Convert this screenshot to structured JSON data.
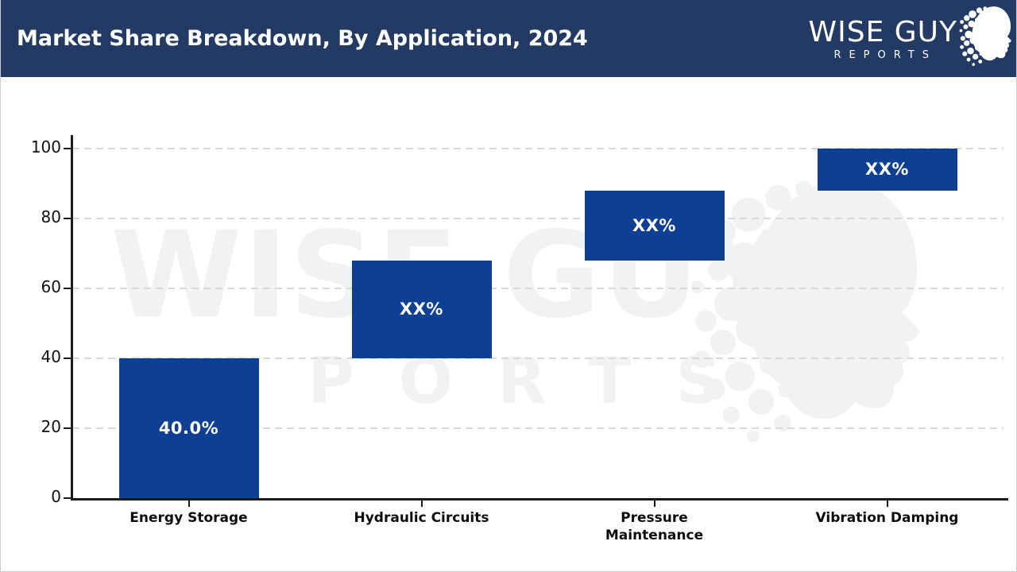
{
  "header": {
    "title": "Market Share Breakdown, By Application, 2024",
    "logo": {
      "brand_line1": "WISE GUY",
      "brand_line2": "REPORTS"
    }
  },
  "watermark": {
    "line1": "WISE GUY",
    "line2": "REPORTS"
  },
  "colors": {
    "header_bg": "#223a64",
    "bar": "#0d4092",
    "bar_label": "#ffffff",
    "gridline": "#d9d9d9",
    "axis": "#1a1a1a",
    "tick_text": "#111111",
    "watermark": "#f1f2f4",
    "page_border": "#cccccc"
  },
  "chart_data": {
    "type": "bar",
    "subtype": "floating-waterfall",
    "title": "Market Share Breakdown, By Application, 2024",
    "categories": [
      "Energy Storage",
      "Hydraulic Circuits",
      "Pressure Maintenance",
      "Vibration Damping"
    ],
    "values": [
      40,
      28,
      20,
      12
    ],
    "starts": [
      0,
      40,
      68,
      88
    ],
    "bar_labels": [
      "40.0%",
      "XX%",
      "XX%",
      "XX%"
    ],
    "ylim": [
      0,
      100
    ],
    "yticks": [
      0,
      20,
      40,
      60,
      80,
      100
    ],
    "xlabel": "",
    "ylabel": "",
    "grid": "horizontal-dashed",
    "legend": "none"
  }
}
